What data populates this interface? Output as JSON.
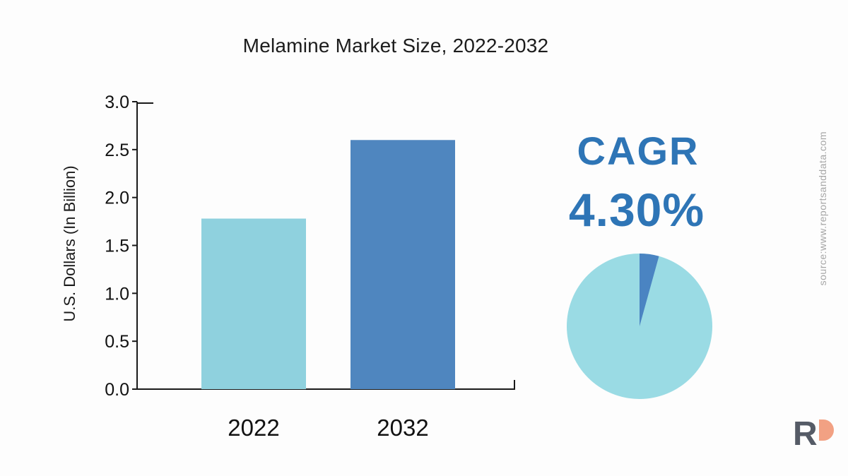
{
  "title": "Melamine Market Size, 2022-2032",
  "chart_data": [
    {
      "type": "bar",
      "title": "Melamine Market Size, 2022-2032",
      "categories": [
        "2022",
        "2032"
      ],
      "values": [
        1.78,
        2.6
      ],
      "bar_colors": [
        "#8FD1DE",
        "#4F86BF"
      ],
      "xlabel": "",
      "ylabel": "U.S. Dollars (In Billion)",
      "ylim": [
        0,
        3.0
      ],
      "yticks": [
        0.0,
        0.5,
        1.0,
        1.5,
        2.0,
        2.5,
        3.0
      ],
      "ytick_labels": [
        "0.0",
        "0.5",
        "1.0",
        "1.5",
        "2.0",
        "2.5",
        "3.0"
      ],
      "grid": false,
      "legend": null
    },
    {
      "type": "pie",
      "slices": [
        {
          "label": "cagr-highlight",
          "percent": 4.3,
          "color": "#4A84C2"
        },
        {
          "label": "remainder",
          "percent": 95.7,
          "color": "#9ADBE4"
        }
      ],
      "start_angle_deg": 0,
      "direction": "clockwise"
    }
  ],
  "cagr": {
    "label": "CAGR",
    "value": "4.30%",
    "color": "#2E75B6"
  },
  "source_text": "source:www.reportsanddata.com",
  "logo": {
    "letter": "R",
    "r_color": "#555B66",
    "d_color": "#F2A183"
  },
  "colors": {
    "axis": "#1a1a1a",
    "tick_label": "#111111",
    "title": "#1c1c1c",
    "source": "#a6a6a6",
    "background": "#fdfdfd"
  }
}
